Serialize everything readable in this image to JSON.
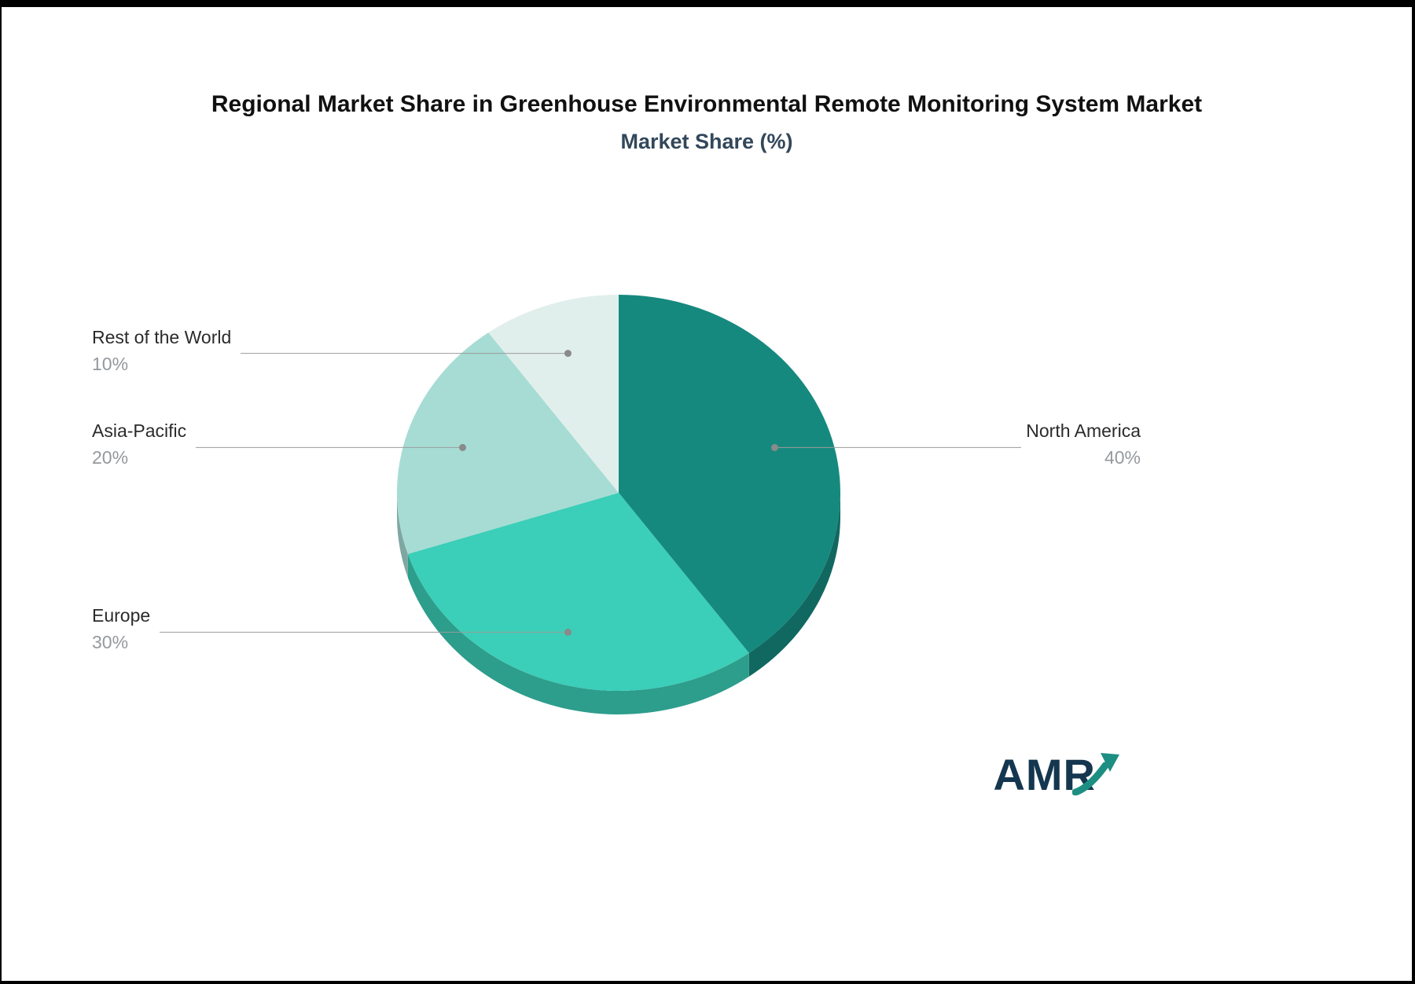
{
  "header": {
    "title": "Regional Market Share in Greenhouse Environmental Remote Monitoring System Market",
    "subtitle": "Market Share (%)"
  },
  "chart_data": {
    "type": "pie",
    "title": "Regional Market Share in Greenhouse Environmental Remote Monitoring System Market",
    "subtitle": "Market Share (%)",
    "unit": "%",
    "direction": "clockwise",
    "start_angle": "top",
    "effect": "3d",
    "legend_position": "callout-labels",
    "slices": [
      {
        "label": "North America",
        "value": 40,
        "display": "40%",
        "color": "#16897e"
      },
      {
        "label": "Europe",
        "value": 30,
        "display": "30%",
        "color": "#3bceb8"
      },
      {
        "label": "Asia-Pacific",
        "value": 20,
        "display": "20%",
        "color": "#a6dcd4"
      },
      {
        "label": "Rest of the World",
        "value": 10,
        "display": "10%",
        "color": "#e1efec"
      }
    ]
  },
  "style": {
    "leader_line_color": "#9b9b9b",
    "dot_color": "#8a8a8a",
    "label_color": "#2b2b2b",
    "percent_color": "#95999d",
    "logo_arrow_color": "#1d8f82"
  },
  "logo": {
    "text": "AMR"
  }
}
